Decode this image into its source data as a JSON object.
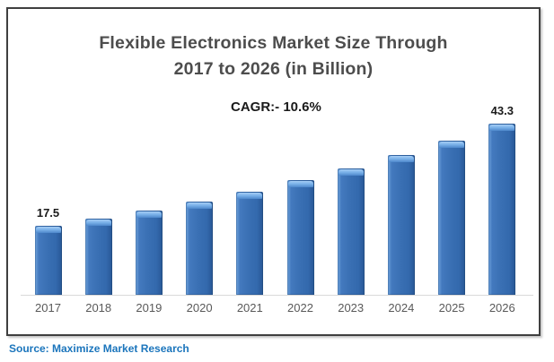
{
  "chart": {
    "title_line1": "Flexible Electronics Market Size Through",
    "title_line2": "2017 to 2026 (in Billion)",
    "cagr_label": "CAGR:- 10.6%",
    "source_label": "Source: Maximize Market Research"
  },
  "chart_data": {
    "type": "bar",
    "title": "Flexible Electronics Market Size Through 2017 to 2026 (in Billion)",
    "xlabel": "",
    "ylabel": "",
    "categories": [
      "2017",
      "2018",
      "2019",
      "2020",
      "2021",
      "2022",
      "2023",
      "2024",
      "2025",
      "2026"
    ],
    "values": [
      17.5,
      19.4,
      21.4,
      23.7,
      26.2,
      29.0,
      32.0,
      35.4,
      39.2,
      43.3
    ],
    "data_labels": [
      {
        "category": "2017",
        "text": "17.5"
      },
      {
        "category": "2026",
        "text": "43.3"
      }
    ],
    "annotation": "CAGR:- 10.6%",
    "cagr_percent": 10.6,
    "ylim": [
      0,
      47
    ],
    "grid": false,
    "legend": false,
    "bar_color": "#3a70b4",
    "bar_highlight_color": "#7db3ea",
    "bar_shadow_color": "#2a5a99",
    "axis_line_color": "#d9d9d9",
    "title_color": "#4d4d4d",
    "tick_label_color": "#595959",
    "source_color": "#1b75bc"
  }
}
